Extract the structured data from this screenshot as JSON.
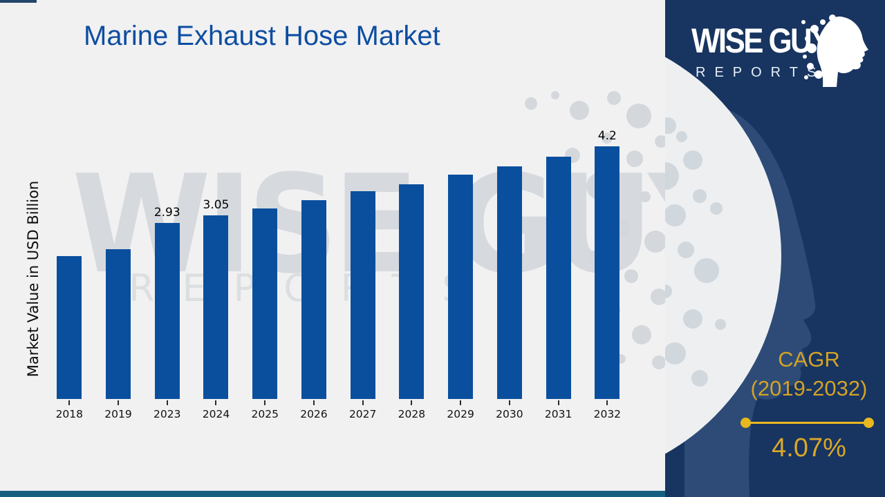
{
  "header": {
    "title": "Marine Exhaust Hose Market"
  },
  "watermark": {
    "line1": "WISE GUY",
    "line2": "REPORTS"
  },
  "logo": {
    "line1": "WISE GUY",
    "line2": "REPORTS"
  },
  "cagr": {
    "title": "CAGR",
    "range": "(2019-2032)",
    "value": "4.07%"
  },
  "colors": {
    "bar": "#0a4f9e",
    "title": "#0d4da1",
    "panel_navy": "#183460",
    "gold": "#d9a829",
    "teal_strip": "#175f80",
    "background": "#f1f1f2"
  },
  "chart_data": {
    "type": "bar",
    "title": "Marine Exhaust Hose Market",
    "xlabel": "",
    "ylabel": "Market Value in USD Billion",
    "categories": [
      "2018",
      "2019",
      "2023",
      "2024",
      "2025",
      "2026",
      "2027",
      "2028",
      "2029",
      "2030",
      "2031",
      "2032"
    ],
    "values": [
      2.37,
      2.49,
      2.93,
      3.05,
      3.17,
      3.3,
      3.45,
      3.57,
      3.73,
      3.87,
      4.03,
      4.2
    ],
    "data_labels": [
      "",
      "",
      "2.93",
      "3.05",
      "",
      "",
      "",
      "",
      "",
      "",
      "",
      "4.2"
    ],
    "ylim": [
      0,
      4.6
    ],
    "grid": false,
    "legend": false,
    "bar_color": "#0a4f9e"
  }
}
